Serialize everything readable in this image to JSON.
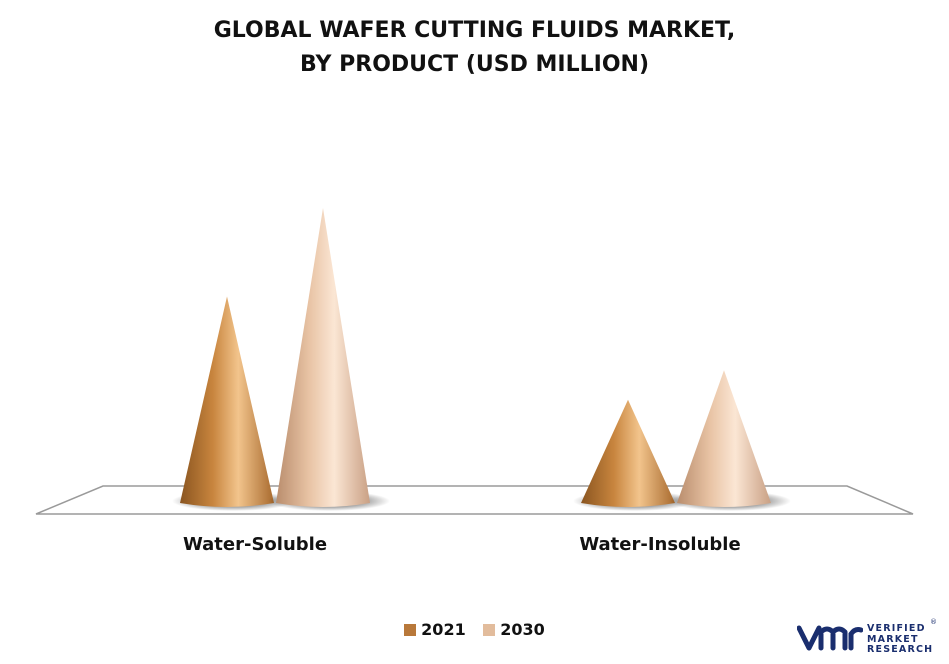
{
  "title": {
    "line1": "GLOBAL WAFER CUTTING FLUIDS MARKET,",
    "line2": "BY PRODUCT (USD MILLION)"
  },
  "chart_data": {
    "type": "bar",
    "style": "3d-cone",
    "title": "GLOBAL WAFER CUTTING FLUIDS MARKET, BY PRODUCT (USD MILLION)",
    "categories": [
      "Water-Soluble",
      "Water-Insoluble"
    ],
    "series": [
      {
        "name": "2021",
        "values": [
          70,
          35
        ],
        "color": "#c8853e"
      },
      {
        "name": "2030",
        "values": [
          100,
          45
        ],
        "color": "#e8c3a4"
      }
    ],
    "ylim": [
      0,
      100
    ],
    "axes_visible": false,
    "grid": false,
    "legend_position": "bottom-center"
  },
  "legend": {
    "items": [
      {
        "label": "2021",
        "color": "#c8853e"
      },
      {
        "label": "2030",
        "color": "#e8c3a4"
      }
    ]
  },
  "logo": {
    "line1": "VERIFIED",
    "line2": "MARKET",
    "line3": "RESEARCH",
    "color": "#1a2e6e",
    "icon": "vmr-logo-icon"
  }
}
